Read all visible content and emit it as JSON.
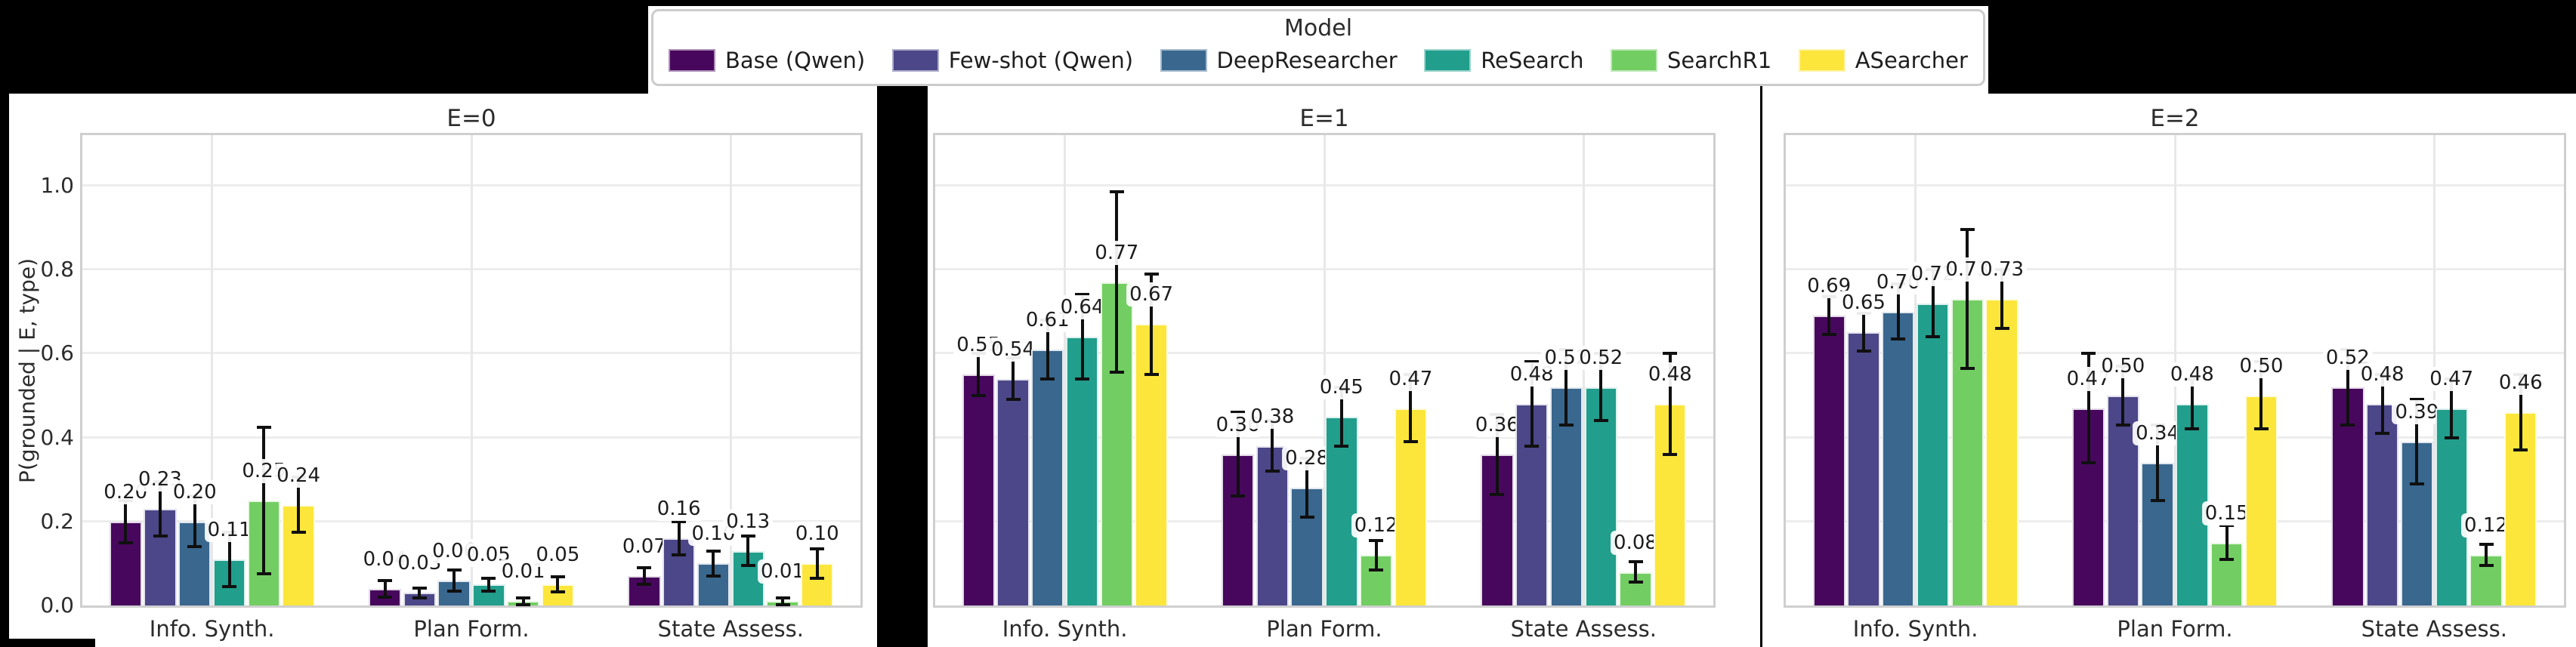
{
  "colors": {
    "background_filler": "#000000",
    "plot_border": "#cfcfcf",
    "gridline": "#ededed",
    "errorbar": "#101010",
    "text": "#2b2b2b"
  },
  "legend": {
    "title": "Model"
  },
  "chart_data": {
    "type": "bar",
    "ylabel": "P(grounded | E, type)",
    "ylim": [
      0,
      1.12
    ],
    "yticks": [
      "0.0",
      "0.2",
      "0.4",
      "0.6",
      "0.8",
      "1.0"
    ],
    "ytick_values": [
      0.0,
      0.2,
      0.4,
      0.6,
      0.8,
      1.0
    ],
    "grid": true,
    "legend_position": "top-center",
    "categories": [
      "Info. Synth.",
      "Plan Form.",
      "State Assess."
    ],
    "models": [
      {
        "name": "Base (Qwen)",
        "color": "#47075d"
      },
      {
        "name": "Few-shot (Qwen)",
        "color": "#4c4789"
      },
      {
        "name": "DeepResearcher",
        "color": "#39678e"
      },
      {
        "name": "ReSearch",
        "color": "#219e8c"
      },
      {
        "name": "SearchR1",
        "color": "#72ce62"
      },
      {
        "name": "ASearcher",
        "color": "#fde63b"
      }
    ],
    "panels": [
      {
        "title": "E=0",
        "series": [
          {
            "name": "Base (Qwen)",
            "values": [
              0.2,
              0.04,
              0.07
            ],
            "errors": [
              0.05,
              0.02,
              0.02
            ]
          },
          {
            "name": "Few-shot (Qwen)",
            "values": [
              0.23,
              0.03,
              0.16
            ],
            "errors": [
              0.065,
              0.012,
              0.04
            ]
          },
          {
            "name": "DeepResearcher",
            "values": [
              0.2,
              0.06,
              0.1
            ],
            "errors": [
              0.06,
              0.025,
              0.03
            ]
          },
          {
            "name": "ReSearch",
            "values": [
              0.11,
              0.05,
              0.13
            ],
            "errors": [
              0.065,
              0.015,
              0.035
            ]
          },
          {
            "name": "SearchR1",
            "values": [
              0.25,
              0.01,
              0.01
            ],
            "errors": [
              0.175,
              0.008,
              0.008
            ]
          },
          {
            "name": "ASearcher",
            "values": [
              0.24,
              0.05,
              0.1
            ],
            "errors": [
              0.065,
              0.018,
              0.035
            ]
          }
        ]
      },
      {
        "title": "E=1",
        "series": [
          {
            "name": "Base (Qwen)",
            "values": [
              0.55,
              0.36,
              0.36
            ],
            "errors": [
              0.05,
              0.1,
              0.095
            ]
          },
          {
            "name": "Few-shot (Qwen)",
            "values": [
              0.54,
              0.38,
              0.48
            ],
            "errors": [
              0.05,
              0.06,
              0.1
            ]
          },
          {
            "name": "DeepResearcher",
            "values": [
              0.61,
              0.28,
              0.52
            ],
            "errors": [
              0.07,
              0.07,
              0.09
            ]
          },
          {
            "name": "ReSearch",
            "values": [
              0.64,
              0.45,
              0.52
            ],
            "errors": [
              0.1,
              0.07,
              0.08
            ]
          },
          {
            "name": "SearchR1",
            "values": [
              0.77,
              0.12,
              0.08
            ],
            "errors": [
              0.215,
              0.035,
              0.025
            ]
          },
          {
            "name": "ASearcher",
            "values": [
              0.67,
              0.47,
              0.48
            ],
            "errors": [
              0.12,
              0.08,
              0.12
            ]
          }
        ]
      },
      {
        "title": "E=2",
        "series": [
          {
            "name": "Base (Qwen)",
            "values": [
              0.69,
              0.47,
              0.52
            ],
            "errors": [
              0.045,
              0.13,
              0.09
            ]
          },
          {
            "name": "Few-shot (Qwen)",
            "values": [
              0.65,
              0.5,
              0.48
            ],
            "errors": [
              0.045,
              0.07,
              0.07
            ]
          },
          {
            "name": "DeepResearcher",
            "values": [
              0.7,
              0.34,
              0.39
            ],
            "errors": [
              0.065,
              0.09,
              0.1
            ]
          },
          {
            "name": "ReSearch",
            "values": [
              0.72,
              0.48,
              0.47
            ],
            "errors": [
              0.08,
              0.06,
              0.07
            ]
          },
          {
            "name": "SearchR1",
            "values": [
              0.73,
              0.15,
              0.12
            ],
            "errors": [
              0.165,
              0.04,
              0.025
            ]
          },
          {
            "name": "ASearcher",
            "values": [
              0.73,
              0.5,
              0.46
            ],
            "errors": [
              0.07,
              0.08,
              0.09
            ]
          }
        ]
      }
    ]
  }
}
